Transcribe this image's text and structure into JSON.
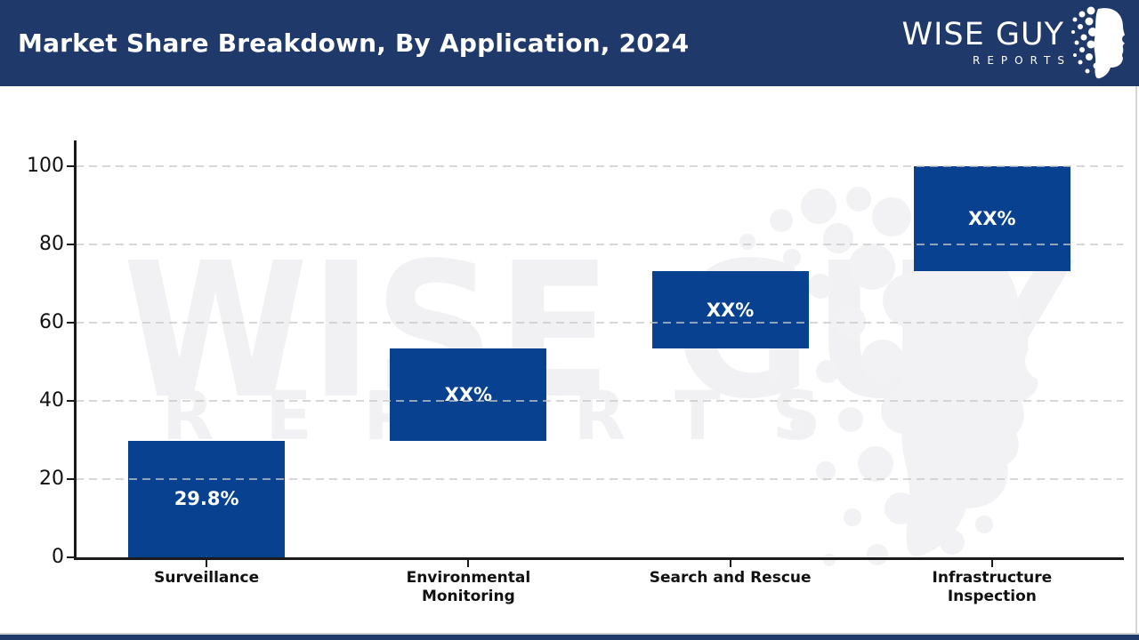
{
  "header": {
    "title": "Market Share Breakdown, By Application, 2024",
    "logo": {
      "brand_line1": "WISE GUY",
      "brand_line2": "REPORTS"
    }
  },
  "watermark": {
    "line1": "WISE GUY",
    "line2": "REPORTS"
  },
  "chart_data": {
    "type": "bar",
    "subtype": "waterfall",
    "title": "Market Share Breakdown, By Application, 2024",
    "categories": [
      "Surveillance",
      "Environmental Monitoring",
      "Search and Rescue",
      "Infrastructure Inspection"
    ],
    "segments": [
      {
        "category": "Surveillance",
        "start": 0,
        "end": 29.8,
        "label": "29.8%"
      },
      {
        "category": "Environmental Monitoring",
        "start": 29.8,
        "end": 53.3,
        "label": "XX%"
      },
      {
        "category": "Search and Rescue",
        "start": 53.3,
        "end": 73.2,
        "label": "XX%"
      },
      {
        "category": "Infrastructure Inspection",
        "start": 73.2,
        "end": 100,
        "label": "XX%"
      }
    ],
    "xlabel": "",
    "ylabel": "",
    "yticks": [
      0,
      20,
      40,
      60,
      80,
      100
    ],
    "ylim": [
      0,
      106
    ],
    "grid": "horizontal-dashed",
    "legend": "none",
    "bar_color": "#07418f",
    "bar_label_color": "#ffffff"
  },
  "colors": {
    "header_bg": "#1f3a6a",
    "footer_bg": "#1f3a6a",
    "bar": "#07418f",
    "axis": "#1a1a1a",
    "gridline": "#d9d9d9",
    "watermark": "#f1f1f3"
  }
}
